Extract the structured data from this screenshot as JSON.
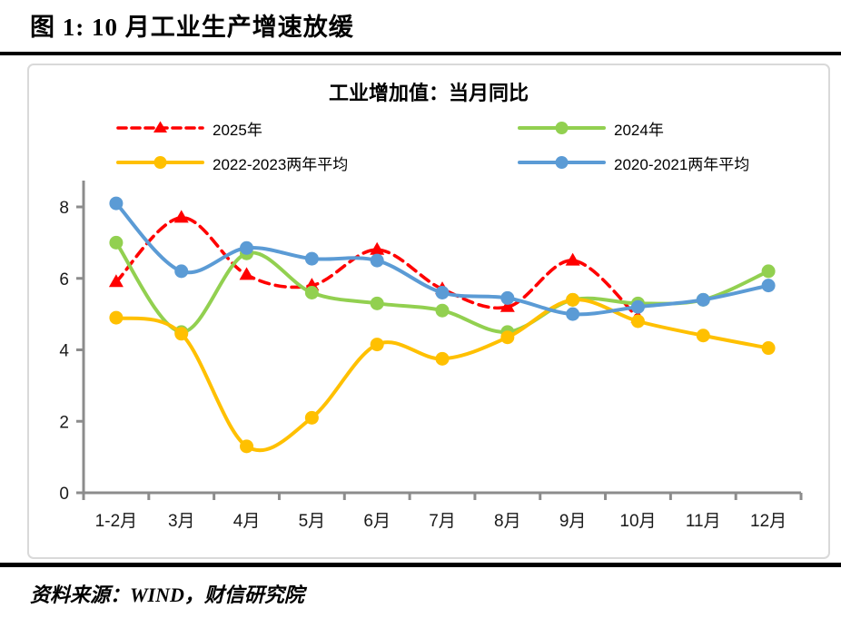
{
  "figure": {
    "title": "图 1: 10 月工业生产增速放缓"
  },
  "source": {
    "text": "资料来源：WIND，财信研究院"
  },
  "colors": {
    "red": "#FF0000",
    "green": "#92D050",
    "yellow": "#FFC000",
    "blue": "#5B9BD5",
    "axis": "#8C8C8C",
    "panel_border": "#D9D9D9",
    "text": "#000000"
  },
  "chart_data": {
    "type": "line",
    "title": "工业增加值：当月同比",
    "categories": [
      "1-2月",
      "3月",
      "4月",
      "5月",
      "6月",
      "7月",
      "8月",
      "9月",
      "10月",
      "11月",
      "12月"
    ],
    "xlabel": "",
    "ylabel": "",
    "ylim": [
      0,
      8
    ],
    "yticks": [
      0,
      2,
      4,
      6,
      8
    ],
    "grid": false,
    "legend_position": "top",
    "line_style": "smoothed",
    "series": [
      {
        "name": "2025年",
        "color": "#FF0000",
        "style": "dashed",
        "marker": "triangle",
        "values": [
          5.9,
          7.7,
          6.1,
          5.8,
          6.8,
          5.7,
          5.2,
          6.5,
          4.9
        ]
      },
      {
        "name": "2024年",
        "color": "#92D050",
        "style": "solid",
        "marker": "circle",
        "values": [
          7.0,
          4.5,
          6.7,
          5.6,
          5.3,
          5.1,
          4.5,
          5.4,
          5.3,
          5.4,
          6.2
        ]
      },
      {
        "name": "2022-2023两年平均",
        "color": "#FFC000",
        "style": "solid",
        "marker": "circle",
        "values": [
          4.9,
          4.45,
          1.3,
          2.1,
          4.15,
          3.75,
          4.35,
          5.4,
          4.8,
          4.4,
          4.05
        ]
      },
      {
        "name": "2020-2021两年平均",
        "color": "#5B9BD5",
        "style": "solid",
        "marker": "circle",
        "values": [
          8.1,
          6.2,
          6.85,
          6.55,
          6.5,
          5.6,
          5.45,
          5.0,
          5.2,
          5.4,
          5.8
        ]
      }
    ]
  }
}
